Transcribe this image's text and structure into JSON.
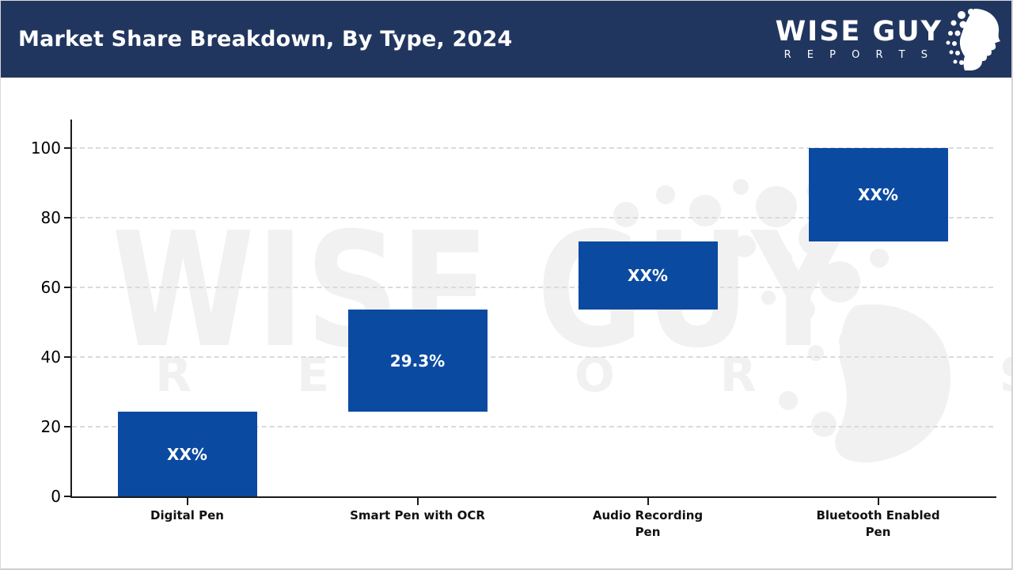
{
  "header": {
    "title": "Market Share Breakdown, By Type, 2024",
    "logo": {
      "line1": "WISE GUY",
      "line2": "R E P O R T S"
    }
  },
  "watermark": {
    "line1": "WISE GUY",
    "line2": "R E P O R T S"
  },
  "colors": {
    "header_bg": "#21365F",
    "bar": "#0B4AA1",
    "bar_label": "#ffffff",
    "gridline": "#dadada",
    "axis": "#1a1a1a",
    "watermark": "#f1f1f1"
  },
  "chart_data": {
    "type": "bar",
    "subtype": "waterfall",
    "title": "Market Share Breakdown, By Type, 2024",
    "categories": [
      "Digital Pen",
      "Smart Pen with OCR",
      "Audio Recording Pen",
      "Bluetooth Enabled Pen"
    ],
    "category_lines": [
      [
        "Digital Pen"
      ],
      [
        "Smart Pen with OCR"
      ],
      [
        "Audio Recording",
        "Pen"
      ],
      [
        "Bluetooth Enabled",
        "Pen"
      ]
    ],
    "segments": [
      {
        "category": "Digital Pen",
        "start": 0,
        "end": 24.3,
        "value": 24.3,
        "label": "XX%"
      },
      {
        "category": "Smart Pen with OCR",
        "start": 24.3,
        "end": 53.6,
        "value": 29.3,
        "label": "29.3%"
      },
      {
        "category": "Audio Recording Pen",
        "start": 53.6,
        "end": 73.2,
        "value": 19.6,
        "label": "XX%"
      },
      {
        "category": "Bluetooth Enabled Pen",
        "start": 73.2,
        "end": 100,
        "value": 26.8,
        "label": "XX%"
      }
    ],
    "yticks": [
      0,
      20,
      40,
      60,
      80,
      100
    ],
    "ylim": [
      0,
      100
    ],
    "grid": "horizontal-dashed",
    "legend": "none",
    "xlabel": "",
    "ylabel": ""
  }
}
